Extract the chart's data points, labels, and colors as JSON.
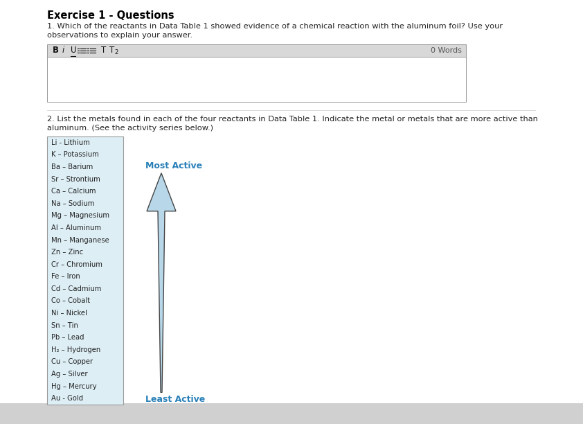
{
  "title": "Exercise 1 - Questions",
  "q1_text_line1": "1. Which of the reactants in Data Table 1 showed evidence of a chemical reaction with the aluminum foil? Use your",
  "q1_text_line2": "observations to explain your answer.",
  "q2_text_line1": "2. List the metals found in each of the four reactants in Data Table 1. Indicate the metal or metals that are more active than",
  "q2_text_line2": "aluminum. (See the activity series below.)",
  "words_label": "0 Words",
  "metals": [
    "Li - Lithium",
    "K – Potassium",
    "Ba – Barium",
    "Sr – Strontium",
    "Ca – Calcium",
    "Na – Sodium",
    "Mg – Magnesium",
    "Al – Aluminum",
    "Mn – Manganese",
    "Zn – Zinc",
    "Cr – Chromium",
    "Fe – Iron",
    "Cd – Cadmium",
    "Co – Cobalt",
    "Ni – Nickel",
    "Sn – Tin",
    "Pb – Lead",
    "H₂ – Hydrogen",
    "Cu – Copper",
    "Ag – Silver",
    "Hg – Mercury",
    "Au - Gold"
  ],
  "most_active_label": "Most Active",
  "least_active_label": "Least Active",
  "arrow_fill_color": "#b8d8ea",
  "arrow_edge_color": "#444444",
  "label_color": "#2980b9",
  "text_color": "#222222",
  "title_color": "#000000",
  "bg_color": "#ffffff",
  "toolbar_bg": "#d8d8d8",
  "box_border_color": "#999999",
  "metals_box_bg": "#ddeef5",
  "box_fill_color": "#ffffff",
  "bottom_bg": "#d0d0d0"
}
